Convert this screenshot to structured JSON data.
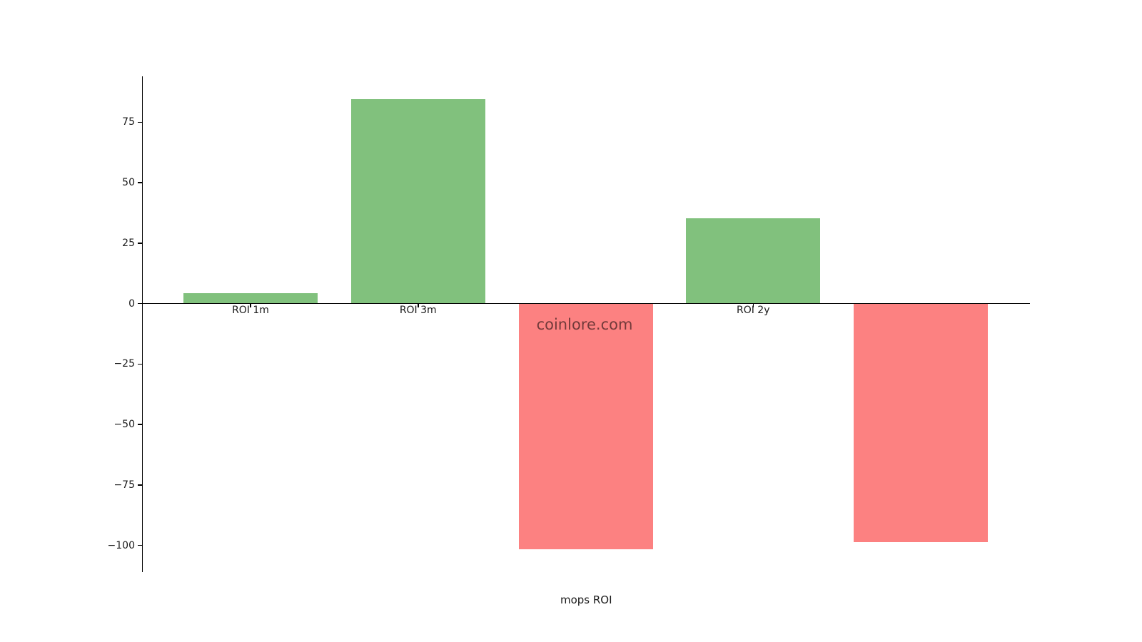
{
  "page": {
    "background": "#ffffff"
  },
  "chart_data": {
    "type": "bar",
    "xlabel": "mops ROI",
    "watermark": "coinlore.com",
    "categories": [
      "ROI 1m",
      "ROI 3m",
      "",
      "ROI 2y",
      ""
    ],
    "series": [
      {
        "name": "ROI",
        "values": [
          4.4,
          84.5,
          -101.5,
          35.4,
          -98.5
        ]
      }
    ],
    "yticks": [
      75,
      50,
      25,
      0,
      -25,
      -50,
      -75,
      -100
    ],
    "ylim": [
      -111,
      94
    ],
    "grid": false,
    "legend": "none",
    "colors": {
      "positive": "#81c17d",
      "negative": "#fc8181",
      "axis": "#000000",
      "tick_text": "#1a1a1a",
      "watermark_text": "rgba(0,0,0,0.55)"
    }
  }
}
